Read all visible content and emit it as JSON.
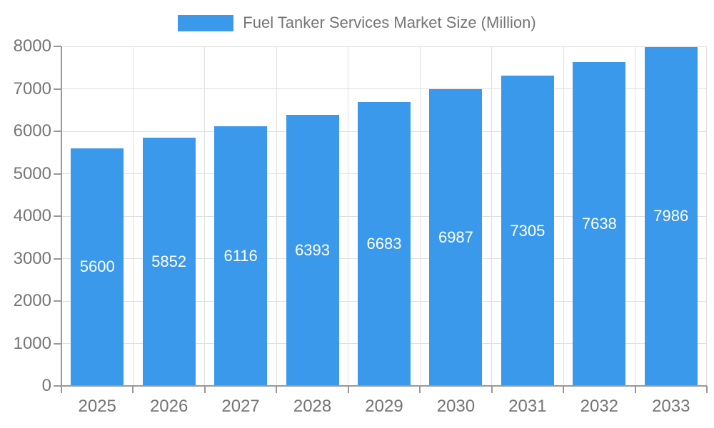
{
  "window": {
    "background": "#ffffff"
  },
  "legend": {
    "label": "Fuel Tanker Services Market Size (Million)"
  },
  "chart_data": {
    "type": "bar",
    "title": "Fuel Tanker Services Market Size (Million)",
    "categories": [
      "2025",
      "2026",
      "2027",
      "2028",
      "2029",
      "2030",
      "2031",
      "2032",
      "2033"
    ],
    "values": [
      5600,
      5852,
      6116,
      6393,
      6683,
      6987,
      7305,
      7638,
      7986
    ],
    "value_labels": [
      "5600",
      "5852",
      "6116",
      "6393",
      "6683",
      "6987",
      "7305",
      "7638",
      "7986"
    ],
    "xlabel": "",
    "ylabel": "",
    "ylim": [
      0,
      8000
    ],
    "yticks": [
      0,
      1000,
      2000,
      3000,
      4000,
      5000,
      6000,
      7000,
      8000
    ],
    "grid": true,
    "legend_position": "top",
    "bar_value_label_position": "center-inside",
    "colors": {
      "bar": "#3b99ec",
      "bar_value_text": "#ffffff",
      "axis_line": "#999999",
      "gridline": "#e0e0e0",
      "tick_text": "#757575",
      "background": "#ffffff"
    }
  }
}
